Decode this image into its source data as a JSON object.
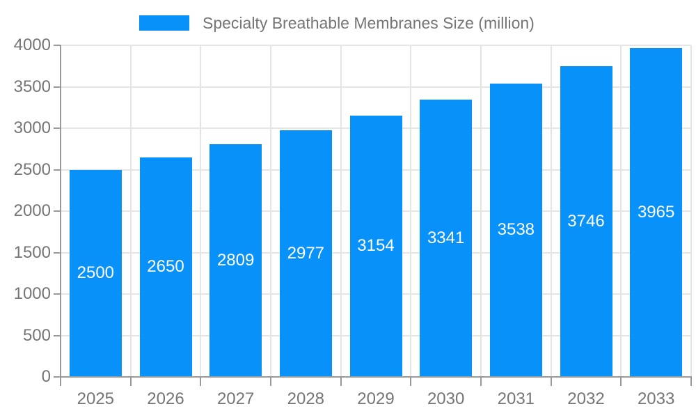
{
  "legend": {
    "label": "Specialty Breathable Membranes Size (million)"
  },
  "chart_data": {
    "type": "bar",
    "title": "Specialty Breathable Membranes Size (million)",
    "categories": [
      "2025",
      "2026",
      "2027",
      "2028",
      "2029",
      "2030",
      "2031",
      "2032",
      "2033"
    ],
    "values": [
      2500,
      2650,
      2809,
      2977,
      3154,
      3341,
      3538,
      3746,
      3965
    ],
    "xlabel": "",
    "ylabel": "",
    "ylim": [
      0,
      4000
    ],
    "yticks": [
      0,
      500,
      1000,
      1500,
      2000,
      2500,
      3000,
      3500,
      4000
    ],
    "grid": true,
    "legend_position": "top",
    "value_label_position": "inside-center",
    "colors": {
      "bar": "#0892f9",
      "grid": "#e5e5e5",
      "axis": "#999999",
      "tick_text": "#757575",
      "value_text": "#ffffff",
      "background": "#ffffff"
    }
  }
}
